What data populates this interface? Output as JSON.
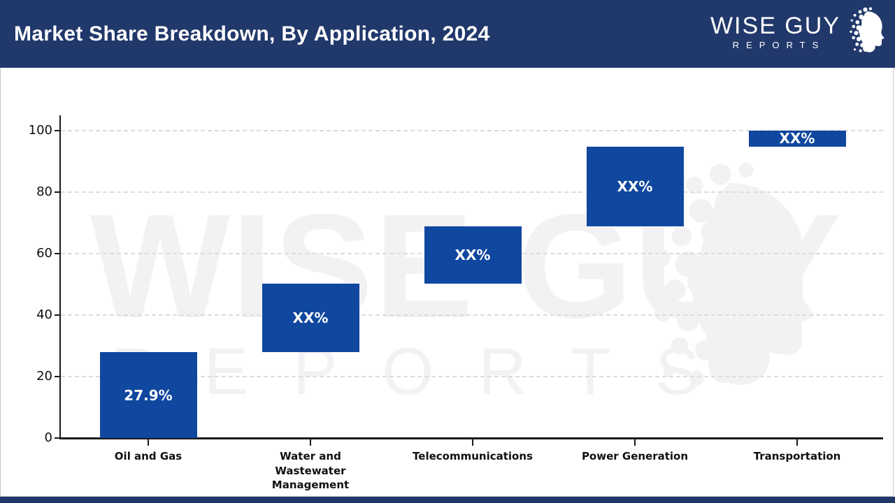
{
  "header": {
    "title": "Market Share Breakdown, By Application, 2024",
    "background": "#21386B"
  },
  "logo": {
    "wordmark": "WISE GUY",
    "sub": "REPORTS"
  },
  "watermark": {
    "wordmark": "WISE GUY",
    "sub": "REPORTS"
  },
  "chart_data": {
    "type": "bar",
    "subtype": "floating-waterfall",
    "title": "Market Share Breakdown, By Application, 2024",
    "categories": [
      "Oil and Gas",
      "Water and\nWastewater\nManagement",
      "Telecommunications",
      "Power Generation",
      "Transportation"
    ],
    "segments": [
      {
        "category": "Oil and Gas",
        "start": 0,
        "end": 27.9,
        "label": "27.9%"
      },
      {
        "category": "Water and Wastewater Management",
        "start": 27.9,
        "end": 50.2,
        "label": "XX%"
      },
      {
        "category": "Telecommunications",
        "start": 50.2,
        "end": 68.8,
        "label": "XX%"
      },
      {
        "category": "Power Generation",
        "start": 68.8,
        "end": 94.8,
        "label": "XX%"
      },
      {
        "category": "Transportation",
        "start": 94.8,
        "end": 100,
        "label": "XX%"
      }
    ],
    "yticks": [
      0,
      20,
      40,
      60,
      80,
      100
    ],
    "ylim": [
      0,
      105
    ],
    "xlabel": "",
    "ylabel": "",
    "grid": "horizontal-dashed",
    "legend": "none",
    "bar_color": "#10479F",
    "bar_label_color": "#ffffff"
  }
}
